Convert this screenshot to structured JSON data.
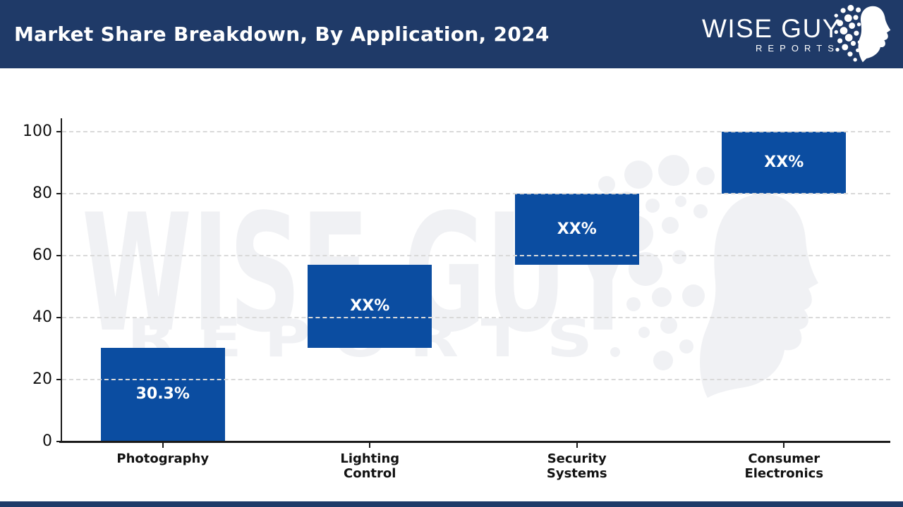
{
  "header": {
    "title": "Market Share Breakdown, By Application, 2024",
    "logo": {
      "line1": "WISE GUY",
      "line2": "REPORTS"
    }
  },
  "watermark": {
    "line1": "WISE GUY",
    "line2": "R E P O R T S"
  },
  "colors": {
    "navy": "#1f3a68",
    "bar_blue": "#0b4da1",
    "grid": "#d9d9d9",
    "axis": "#1a1a1a",
    "watermark": "#f0f1f4"
  },
  "chart_data": {
    "type": "bar",
    "subtype": "waterfall-stacked-breakdown",
    "title": "Market Share Breakdown, By Application, 2024",
    "categories": [
      "Photography",
      "Lighting Control",
      "Security Systems",
      "Consumer Electronics"
    ],
    "segments": [
      {
        "category": "Photography",
        "start": 0,
        "end": 30.3,
        "label": "30.3%"
      },
      {
        "category": "Lighting Control",
        "start": 30.3,
        "end": 57,
        "label": "XX%"
      },
      {
        "category": "Security Systems",
        "start": 57,
        "end": 80,
        "label": "XX%"
      },
      {
        "category": "Consumer Electronics",
        "start": 80,
        "end": 100,
        "label": "XX%"
      }
    ],
    "yticks": [
      0,
      20,
      40,
      60,
      80,
      100
    ],
    "ylim": [
      0,
      105
    ],
    "xlabel": "",
    "ylabel": "",
    "grid": "dashed-horizontal",
    "legend": "none",
    "bar_label_color": "#ffffff"
  }
}
